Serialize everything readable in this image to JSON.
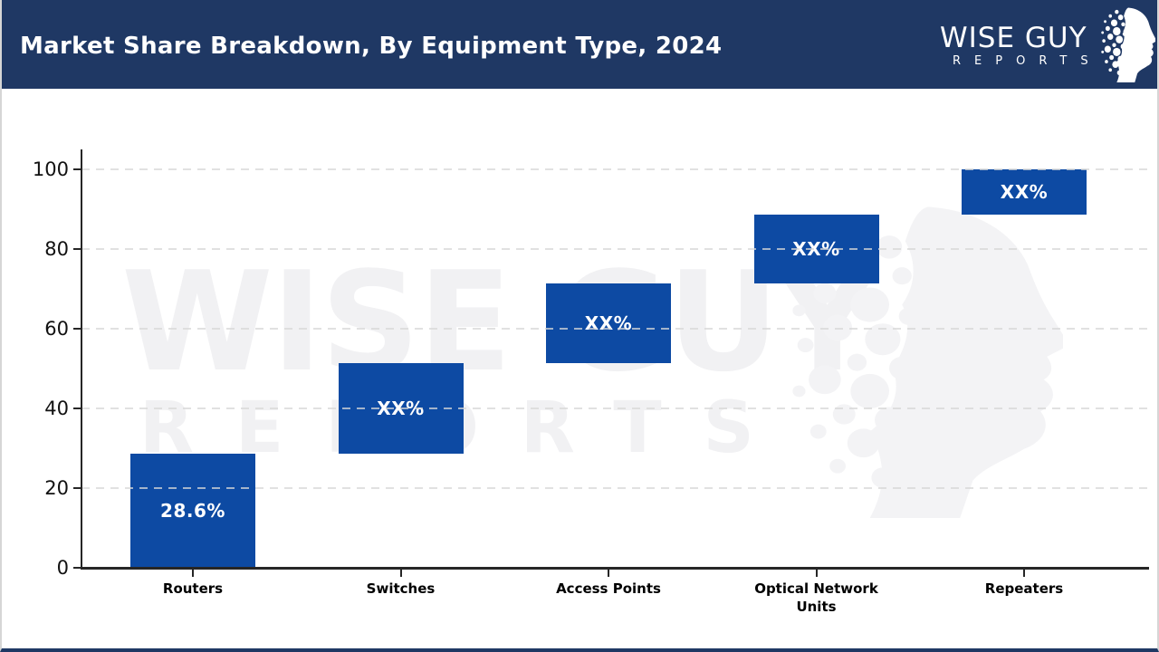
{
  "header": {
    "title": "Market Share Breakdown, By Equipment Type, 2024",
    "logo": {
      "line1": "WISE GUY",
      "line2": "REPORTS"
    }
  },
  "watermark": {
    "line1": "WISE GUY",
    "line2": "REPORTS"
  },
  "colors": {
    "header_bg": "#1f3864",
    "bar_blue": "#0d4aa3",
    "axis": "#262626",
    "grid": "#d7d7d7",
    "value_label": "#ffffff",
    "watermark": "#f1f1f3"
  },
  "chart_data": {
    "type": "bar",
    "subtype": "waterfall",
    "title": "Market Share Breakdown, By Equipment Type, 2024",
    "categories": [
      "Routers",
      "Switches",
      "Access Points",
      "Optical Network Units",
      "Repeaters"
    ],
    "segments": [
      {
        "category": "Routers",
        "start": 0,
        "end": 28.6,
        "label": "28.6%"
      },
      {
        "category": "Switches",
        "start": 28.6,
        "end": 51.4,
        "label": "XX%"
      },
      {
        "category": "Access Points",
        "start": 51.4,
        "end": 71.4,
        "label": "XX%"
      },
      {
        "category": "Optical Network Units",
        "start": 71.4,
        "end": 88.6,
        "label": "XX%"
      },
      {
        "category": "Repeaters",
        "start": 88.6,
        "end": 100,
        "label": "XX%"
      }
    ],
    "xlabel": "",
    "ylabel": "",
    "yticks": [
      0,
      20,
      40,
      60,
      80,
      100
    ],
    "ylim": [
      0,
      105
    ],
    "grid": "horizontal-dashed",
    "legend": "none",
    "value_labels_inside_bars": true
  }
}
